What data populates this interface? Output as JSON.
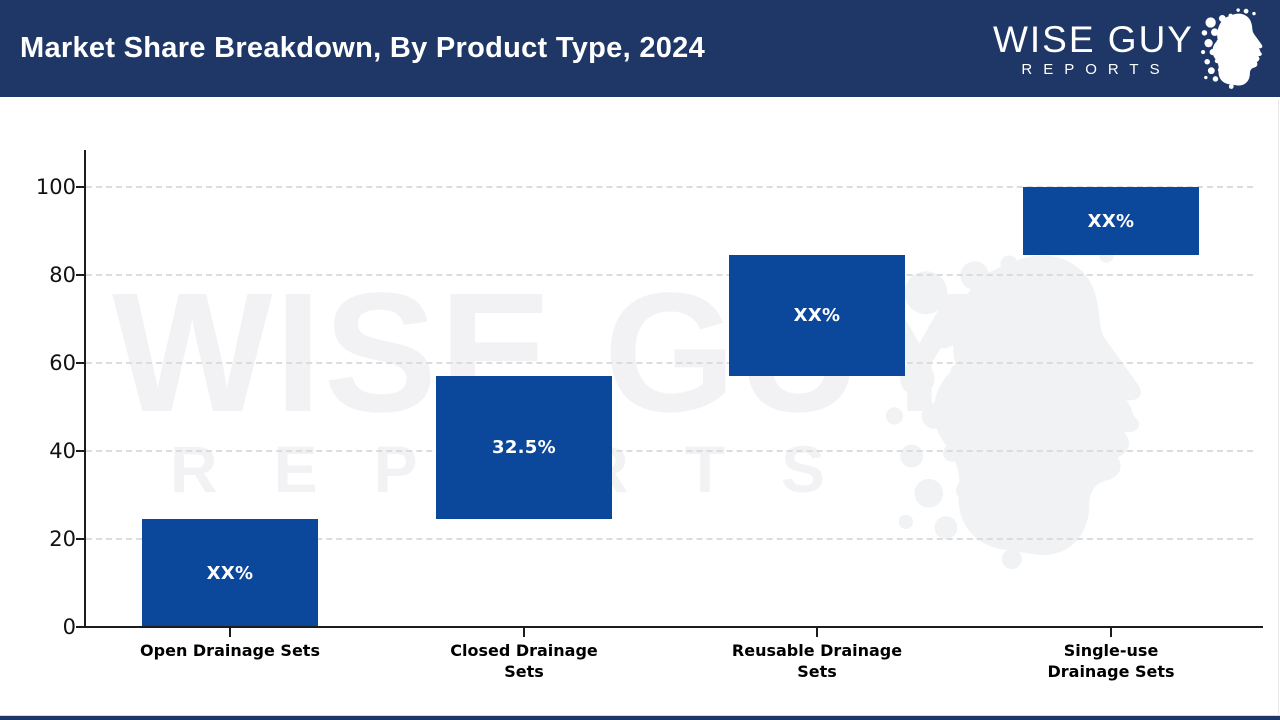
{
  "header": {
    "title": "Market Share Breakdown, By Product Type, 2024",
    "logo_line1": "WISE GUY",
    "logo_line2": "REPORTS"
  },
  "watermark": {
    "line1": "WISE GUY",
    "line2": "REPORTS"
  },
  "chart_data": {
    "type": "bar",
    "subtype": "floating-waterfall",
    "title": "",
    "xlabel": "",
    "ylabel": "",
    "categories": [
      "Open Drainage Sets",
      "Closed Drainage\nSets",
      "Reusable Drainage\nSets",
      "Single-use\nDrainage Sets"
    ],
    "segments": [
      {
        "category": "Open Drainage Sets",
        "start": 0,
        "end": 24.5,
        "label": "XX%"
      },
      {
        "category": "Closed Drainage Sets",
        "start": 24.5,
        "end": 57,
        "label": "32.5%"
      },
      {
        "category": "Reusable Drainage Sets",
        "start": 57,
        "end": 84.5,
        "label": "XX%"
      },
      {
        "category": "Single-use Drainage Sets",
        "start": 84.5,
        "end": 100,
        "label": "XX%"
      }
    ],
    "yticks": [
      0,
      20,
      40,
      60,
      80,
      100
    ],
    "ylim": [
      0,
      108
    ],
    "grid": "horizontal-dashed",
    "legend_position": "none",
    "bar_color": "#0b479b",
    "bar_label_color": "#ffffff"
  },
  "colors": {
    "header_bg": "#1f3766",
    "bar": "#0b479b",
    "axis": "#1c1c1c",
    "grid": "#dcdcdc",
    "watermark": "#f1f2f4",
    "footer_bar": "#1f3766"
  }
}
